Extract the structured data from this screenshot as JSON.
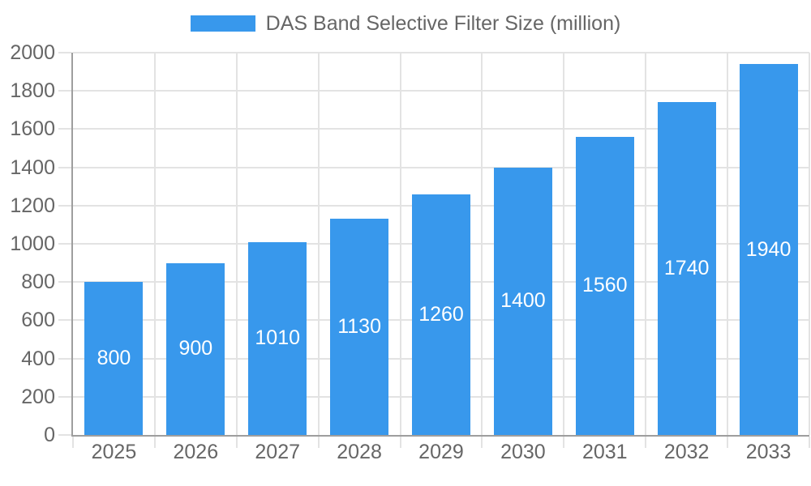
{
  "chart_data": {
    "type": "bar",
    "title": "DAS Band Selective Filter Size (million)",
    "legend_position": "top",
    "categories": [
      "2025",
      "2026",
      "2027",
      "2028",
      "2029",
      "2030",
      "2031",
      "2032",
      "2033"
    ],
    "series": [
      {
        "name": "DAS Band Selective Filter Size (million)",
        "values": [
          800,
          900,
          1010,
          1130,
          1260,
          1400,
          1560,
          1740,
          1940
        ]
      }
    ],
    "value_labels_shown": true,
    "xlabel": "",
    "ylabel": "",
    "ylim": [
      0,
      2000
    ],
    "ytick_step": 200,
    "yticks": [
      0,
      200,
      400,
      600,
      800,
      1000,
      1200,
      1400,
      1600,
      1800,
      2000
    ],
    "grid": true,
    "colors": {
      "bar": "#3898ec",
      "value_label": "#ffffff",
      "tick_text": "#666666",
      "legend_text": "#666666",
      "gridline": "#e3e3e3",
      "axis_border": "#9e9e9e",
      "background": "#ffffff"
    }
  }
}
